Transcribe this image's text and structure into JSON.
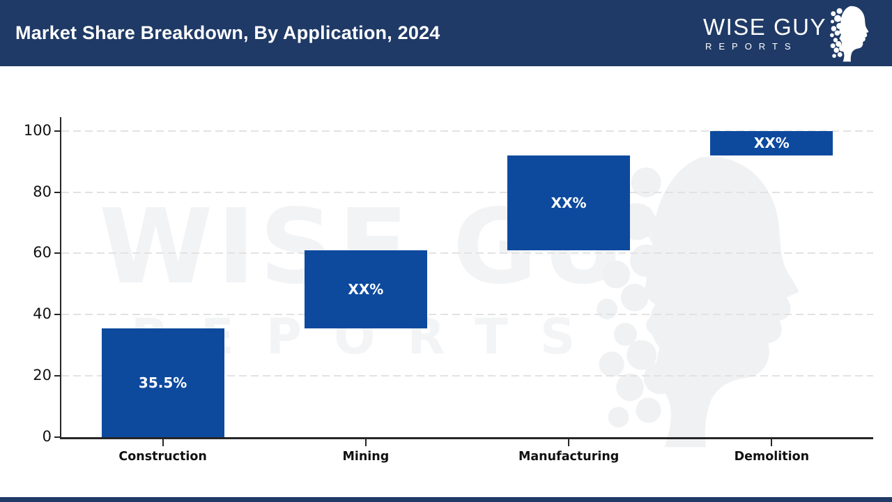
{
  "header": {
    "title": "Market Share Breakdown, By Application, 2024",
    "logo": {
      "brand": "WISE GUY",
      "sub": "REPORTS",
      "face_icon": "dotted-face-profile"
    }
  },
  "watermark": {
    "brand": "WISE GUY",
    "sub": "REPORTS"
  },
  "colors": {
    "header_bg": "#1f3a66",
    "footer_bg": "#1f3a66",
    "bar": "#0d4a9e",
    "grid": "#e2e2e2",
    "axis": "#262626",
    "bar_label": "#ffffff",
    "watermark": "#f2f3f5"
  },
  "chart_data": {
    "type": "bar",
    "subtype": "waterfall",
    "title": "Market Share Breakdown, By Application, 2024",
    "categories": [
      "Construction",
      "Mining",
      "Manufacturing",
      "Demolition"
    ],
    "segments": [
      {
        "category": "Construction",
        "start": 0,
        "end": 35.5,
        "label": "35.5%"
      },
      {
        "category": "Mining",
        "start": 35.5,
        "end": 61,
        "label": "XX%"
      },
      {
        "category": "Manufacturing",
        "start": 61,
        "end": 92,
        "label": "XX%"
      },
      {
        "category": "Demolition",
        "start": 92,
        "end": 100,
        "label": "XX%"
      }
    ],
    "yticks": [
      0,
      20,
      40,
      60,
      80,
      100
    ],
    "ylim": [
      0,
      104.5
    ],
    "xlabel": "",
    "ylabel": "",
    "grid": "horizontal-dashed",
    "legend": "none"
  }
}
